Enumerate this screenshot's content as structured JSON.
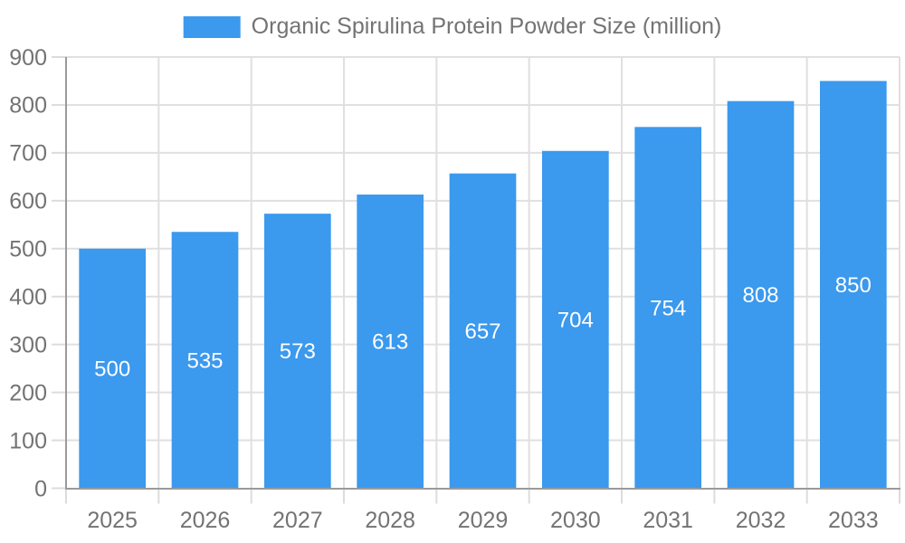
{
  "legend": {
    "label": "Organic Spirulina Protein Powder Size (million)"
  },
  "chart_data": {
    "type": "bar",
    "title": "Organic Spirulina Protein Powder Size (million)",
    "categories": [
      "2025",
      "2026",
      "2027",
      "2028",
      "2029",
      "2030",
      "2031",
      "2032",
      "2033"
    ],
    "values": [
      500,
      535,
      573,
      613,
      657,
      704,
      754,
      808,
      850
    ],
    "xlabel": "",
    "ylabel": "",
    "ylim": [
      0,
      900
    ],
    "ytick_step": 100,
    "grid": true,
    "legend_position": "top-center",
    "value_label_position": "inside-middle"
  },
  "colors": {
    "bar": "#3B99EE",
    "axis_text": "#737373",
    "legend_text": "#737373",
    "grid_line": "#E0E0E0",
    "tick_line": "#DCDCDC",
    "axis_line": "#9A9A9A",
    "value_label_text": "#FFFFFF",
    "background": "#FFFFFF"
  }
}
